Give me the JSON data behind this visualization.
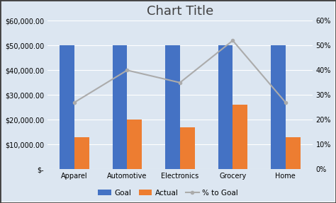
{
  "categories": [
    "Apparel",
    "Automotive",
    "Electronics",
    "Grocery",
    "Home"
  ],
  "goal": [
    50000,
    50000,
    50000,
    50000,
    50000
  ],
  "actual": [
    13000,
    20000,
    17000,
    26000,
    13000
  ],
  "pct_to_goal": [
    0.27,
    0.4,
    0.35,
    0.52,
    0.27
  ],
  "goal_color": "#4472C4",
  "actual_color": "#ED7D31",
  "line_color": "#ABABAB",
  "title": "Chart Title",
  "title_fontsize": 13,
  "ylim_left": [
    0,
    60000
  ],
  "ylim_right": [
    0,
    0.6
  ],
  "ylabel_left_ticks": [
    0,
    10000,
    20000,
    30000,
    40000,
    50000,
    60000
  ],
  "ylabel_right_ticks": [
    0.0,
    0.1,
    0.2,
    0.3,
    0.4,
    0.5,
    0.6
  ],
  "outer_bg_color": "#C9C9C9",
  "inner_bg_color": "#DCE6F1",
  "plot_bg_color": "#DCE6F1",
  "legend_labels": [
    "Goal",
    "Actual",
    "% to Goal"
  ],
  "bar_width": 0.28
}
